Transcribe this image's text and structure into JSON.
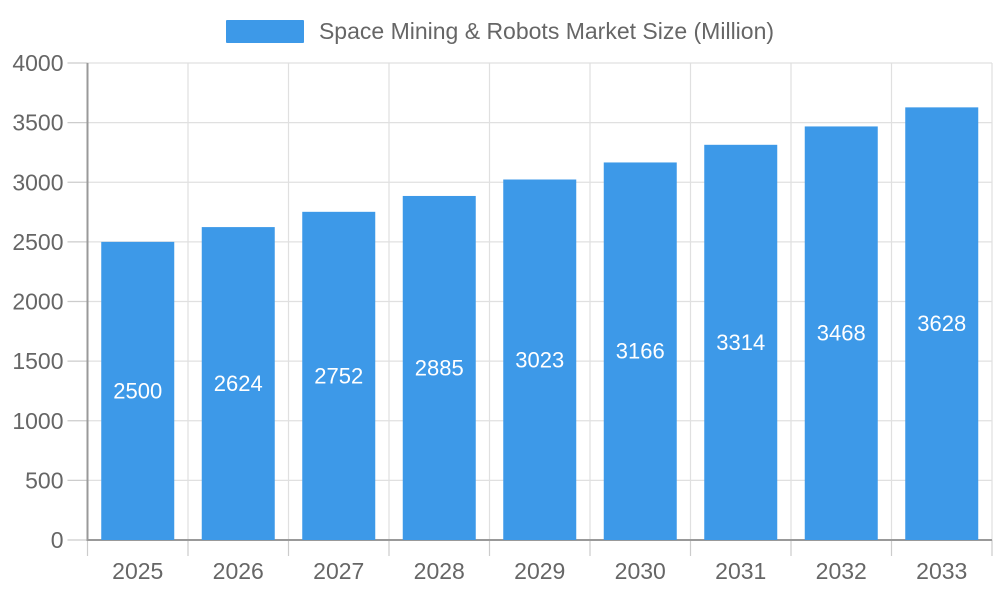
{
  "chart_data": {
    "type": "bar",
    "title": "Space Mining & Robots Market Size (Million)",
    "categories": [
      "2025",
      "2026",
      "2027",
      "2028",
      "2029",
      "2030",
      "2031",
      "2032",
      "2033"
    ],
    "series": [
      {
        "name": "Space Mining & Robots Market Size (Million)",
        "values": [
          2500,
          2624,
          2752,
          2885,
          3023,
          3166,
          3314,
          3468,
          3628
        ]
      }
    ],
    "xlabel": "",
    "ylabel": "",
    "ylim": [
      0,
      4000
    ],
    "ytick_step": 500,
    "ytick_labels": [
      "0",
      "500",
      "1000",
      "1500",
      "2000",
      "2500",
      "3000",
      "3500",
      "4000"
    ],
    "grid": true,
    "legend_position": "top-center",
    "value_label_position": "inside-middle"
  },
  "colors": {
    "bar": "#3D99E8",
    "value_label": "#FFFFFF",
    "axis_text": "#666666",
    "legend_text": "#666666",
    "grid_line": "#E0E0E0",
    "tick_line": "#CCCCCC",
    "axis_line": "#999999",
    "background": "#FFFFFF"
  }
}
